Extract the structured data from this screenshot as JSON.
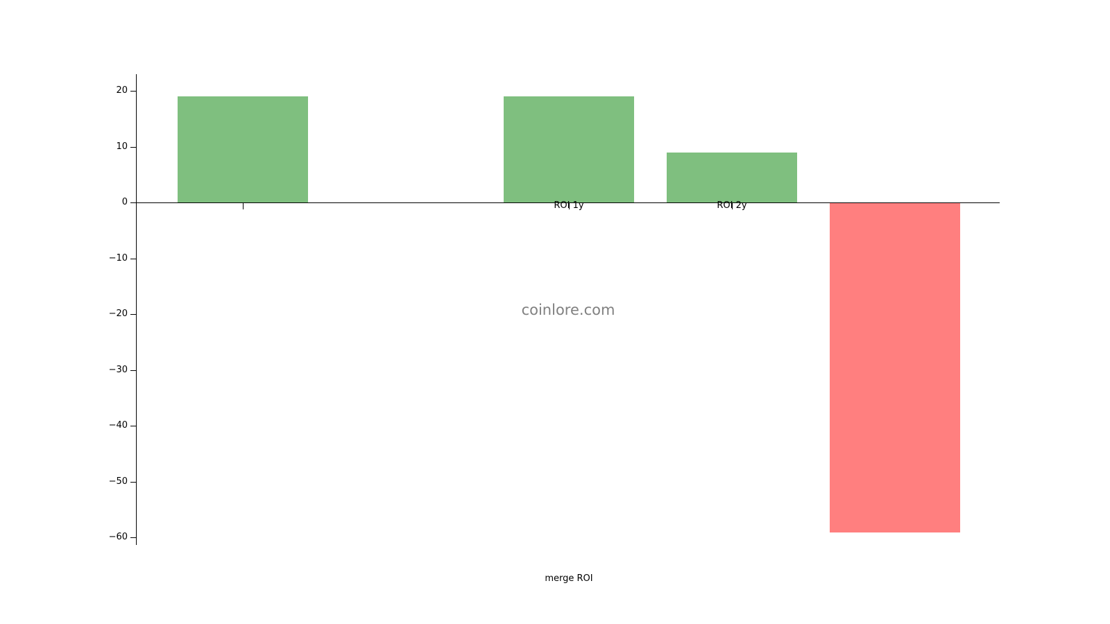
{
  "page": {
    "background": "#ffffff"
  },
  "watermark": {
    "text": "coinlore.com",
    "color": "#808080"
  },
  "chart_data": {
    "type": "bar",
    "title": "",
    "xlabel": "merge ROI",
    "ylabel": "",
    "categories": [
      "",
      "",
      "ROI 1y",
      "ROI 2y",
      ""
    ],
    "values": [
      19,
      0,
      19,
      9,
      -59
    ],
    "bars": [
      {
        "label": "",
        "value": 19,
        "color": "#7fbf7f",
        "show_bar": true,
        "show_tick": true,
        "show_label": false
      },
      {
        "label": "",
        "value": 0,
        "color": "",
        "show_bar": false,
        "show_tick": false,
        "show_label": false
      },
      {
        "label": "ROI 1y",
        "value": 19,
        "color": "#7fbf7f",
        "show_bar": true,
        "show_tick": true,
        "show_label": true
      },
      {
        "label": "ROI 2y",
        "value": 9,
        "color": "#7fbf7f",
        "show_bar": true,
        "show_tick": true,
        "show_label": true
      },
      {
        "label": "",
        "value": -59,
        "color": "#ff7f7f",
        "show_bar": true,
        "show_tick": false,
        "show_label": false
      }
    ],
    "yticks": [
      20,
      10,
      0,
      -10,
      -20,
      -30,
      -40,
      -50,
      -60
    ],
    "ytick_labels": [
      "20",
      "10",
      "0",
      "−10",
      "−20",
      "−30",
      "−40",
      "−50",
      "−60"
    ],
    "ylim": [
      -61.5,
      23
    ],
    "positive_color": "#7fbf7f",
    "negative_color": "#ff7f7f",
    "axis_color": "#000000",
    "watermark_color": "#808080",
    "grid": false,
    "legend": "none"
  }
}
